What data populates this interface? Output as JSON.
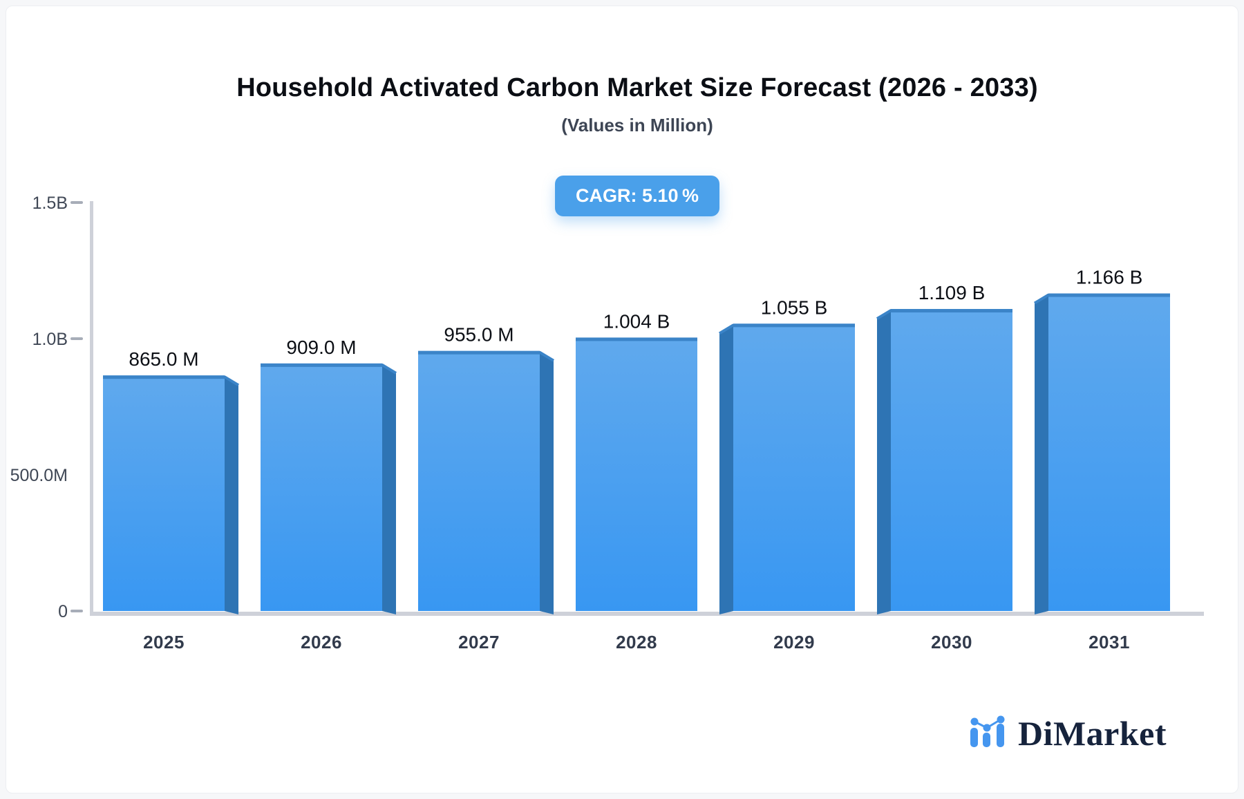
{
  "header": {
    "title": "Household Activated Carbon Market Size Forecast (2026 - 2033)",
    "subtitle": "(Values in Million)",
    "cagr_badge": "CAGR: 5.10 %",
    "badge_color": "#4aa0ea"
  },
  "chart_data": {
    "type": "bar",
    "title": "Household Activated Carbon Market Size Forecast (2026 - 2033)",
    "subtitle": "(Values in Million)",
    "categories": [
      "2025",
      "2026",
      "2027",
      "2028",
      "2029",
      "2030",
      "2031"
    ],
    "values_millions": [
      865,
      909,
      955,
      1004,
      1055,
      1109,
      1166
    ],
    "value_labels": [
      "865.0 M",
      "909.0 M",
      "955.0 M",
      "1.004 B",
      "1.055 B",
      "1.109 B",
      "1.166 B"
    ],
    "xlabel": "",
    "ylabel": "",
    "ylim_millions": [
      0,
      1500
    ],
    "grid": false,
    "legend": "none",
    "y_ticks": [
      {
        "label": "1.5B",
        "value": 1500,
        "dash": true
      },
      {
        "label": "1.0B",
        "value": 1000,
        "dash": true
      },
      {
        "label": "500.0M",
        "value": 500,
        "dash": false
      },
      {
        "label": "0",
        "value": 0,
        "dash": true
      }
    ],
    "colors": {
      "bar_face_top": "#60a9ed",
      "bar_face_bottom": "#3897f2",
      "bar_side": "#2e74b4",
      "bar_top_edge": "#3b84c8",
      "axis": "#ced1d9",
      "tick_dash": "#a7adb8",
      "tick_text": "#3f4755",
      "value_text": "#0c0f15",
      "category_text": "#323b4c"
    }
  },
  "footer": {
    "brand": "DiMarket",
    "brand_color": "#16233c",
    "icon": "mini-bar-chart-with-dots",
    "icon_color": "#4596ef"
  }
}
